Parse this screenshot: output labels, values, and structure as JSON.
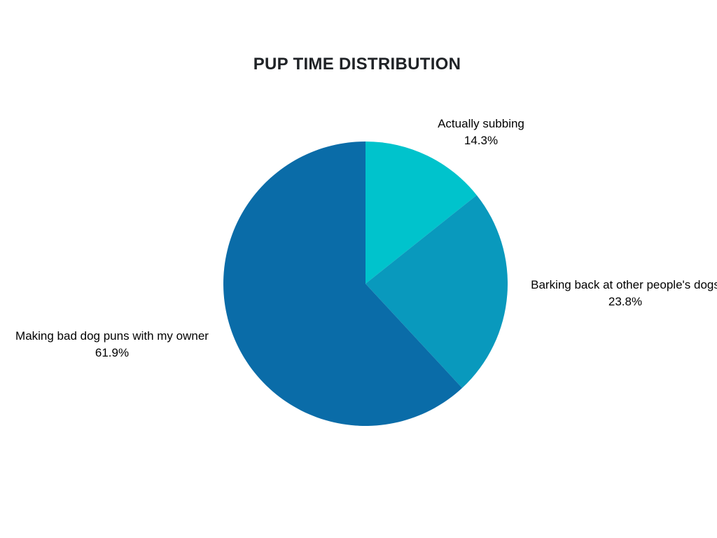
{
  "title": "PUP TIME DISTRIBUTION",
  "background_color": "#ffffff",
  "text_color": "#000000",
  "title_color": "#1f2226",
  "chart_data": {
    "type": "pie",
    "title": "PUP TIME DISTRIBUTION",
    "start_angle_deg": 0,
    "direction": "clockwise",
    "legend": "none",
    "labels_position": "outside",
    "slices": [
      {
        "id": "actually-subbing",
        "label": "Actually subbing",
        "value": 14.3,
        "pct_label": "14.3%",
        "color": "#00C3CC"
      },
      {
        "id": "barking-back",
        "label": "Barking back at other people's dogs",
        "value": 23.8,
        "pct_label": "23.8%",
        "color": "#0999BD"
      },
      {
        "id": "bad-dog-puns",
        "label": "Making bad dog puns with my owner",
        "value": 61.9,
        "pct_label": "61.9%",
        "color": "#0A6CA8"
      }
    ]
  }
}
